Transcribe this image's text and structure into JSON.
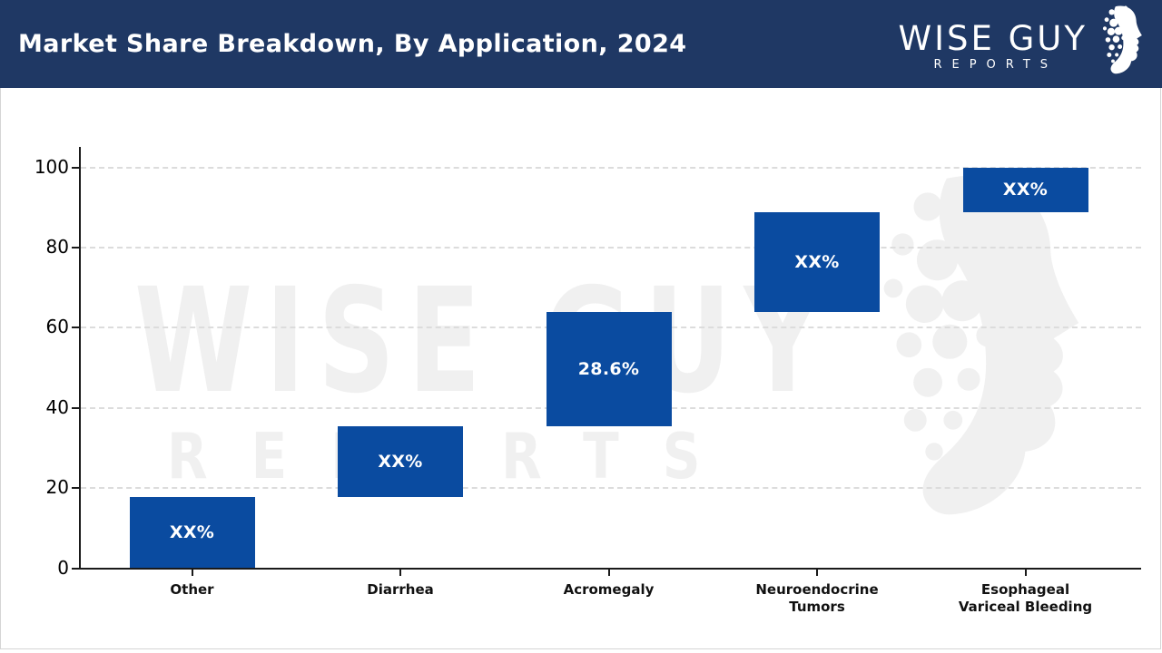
{
  "header": {
    "title": "Market Share Breakdown, By Application, 2024",
    "logo": {
      "line1": "WISE GUY",
      "line2": "REPORTS"
    }
  },
  "watermark": {
    "line1": "WISE GUY",
    "line2": "REPORTS"
  },
  "colors": {
    "header_bg": "#1F3864",
    "bar": "#0A4BA0",
    "bar_label": "#FFFFFF",
    "axis": "#1A1A1A",
    "grid": "#DCDCDC",
    "watermark": "#F0F0F0"
  },
  "chart_data": {
    "type": "bar",
    "subtype": "waterfall-floating",
    "title": "Market Share Breakdown, By Application, 2024",
    "categories": [
      "Other",
      "Diarrhea",
      "Acromegaly",
      "Neuroendocrine Tumors",
      "Esophageal Variceal Bleeding"
    ],
    "category_lines": [
      [
        "Other"
      ],
      [
        "Diarrhea"
      ],
      [
        "Acromegaly"
      ],
      [
        "Neuroendocrine",
        "Tumors"
      ],
      [
        "Esophageal",
        "Variceal Bleeding"
      ]
    ],
    "segments": [
      {
        "category": "Other",
        "start": 0,
        "end": 17.8,
        "value_label": "XX%"
      },
      {
        "category": "Diarrhea",
        "start": 17.8,
        "end": 35.4,
        "value_label": "XX%"
      },
      {
        "category": "Acromegaly",
        "start": 35.4,
        "end": 64.0,
        "value": 28.6,
        "value_label": "28.6%"
      },
      {
        "category": "Neuroendocrine Tumors",
        "start": 64.0,
        "end": 88.9,
        "value_label": "XX%"
      },
      {
        "category": "Esophageal Variceal Bleeding",
        "start": 88.9,
        "end": 100,
        "value_label": "XX%"
      }
    ],
    "yticks": [
      0,
      20,
      40,
      60,
      80,
      100
    ],
    "ylim": [
      0,
      105
    ],
    "xlabel": "",
    "ylabel": "",
    "grid": true,
    "legend": false
  }
}
